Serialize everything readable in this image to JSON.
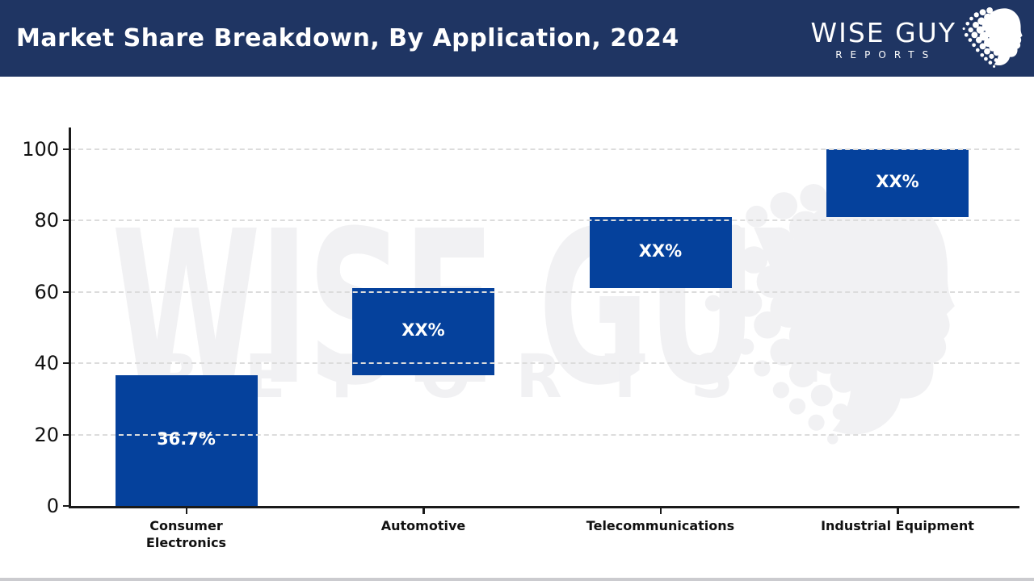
{
  "header": {
    "title": "Market Share Breakdown, By Application, 2024",
    "logo": {
      "name": "WISE GUY",
      "subtitle": "REPORTS"
    }
  },
  "watermark": {
    "line1": "WISE GUY",
    "line2": "REPORTS"
  },
  "chart_data": {
    "type": "bar",
    "subtype": "waterfall",
    "title": "Market Share Breakdown, By Application, 2024",
    "categories": [
      "Consumer Electronics",
      "Automotive",
      "Telecommunications",
      "Industrial Equipment"
    ],
    "segments": [
      {
        "category": "Consumer Electronics",
        "start": 0,
        "end": 36.7,
        "label": "36.7%"
      },
      {
        "category": "Automotive",
        "start": 36.7,
        "end": 61,
        "label": "XX%"
      },
      {
        "category": "Telecommunications",
        "start": 61,
        "end": 81,
        "label": "XX%"
      },
      {
        "category": "Industrial Equipment",
        "start": 81,
        "end": 100,
        "label": "XX%"
      }
    ],
    "xlabel": "",
    "ylabel": "",
    "ylim": [
      0,
      100
    ],
    "yticks": [
      0,
      20,
      40,
      60,
      80,
      100
    ],
    "grid": "horizontal-dashed",
    "legend": "none",
    "bar_color": "#05419C",
    "bar_label_color": "#FFFFFF",
    "header_color": "#1F3563"
  }
}
